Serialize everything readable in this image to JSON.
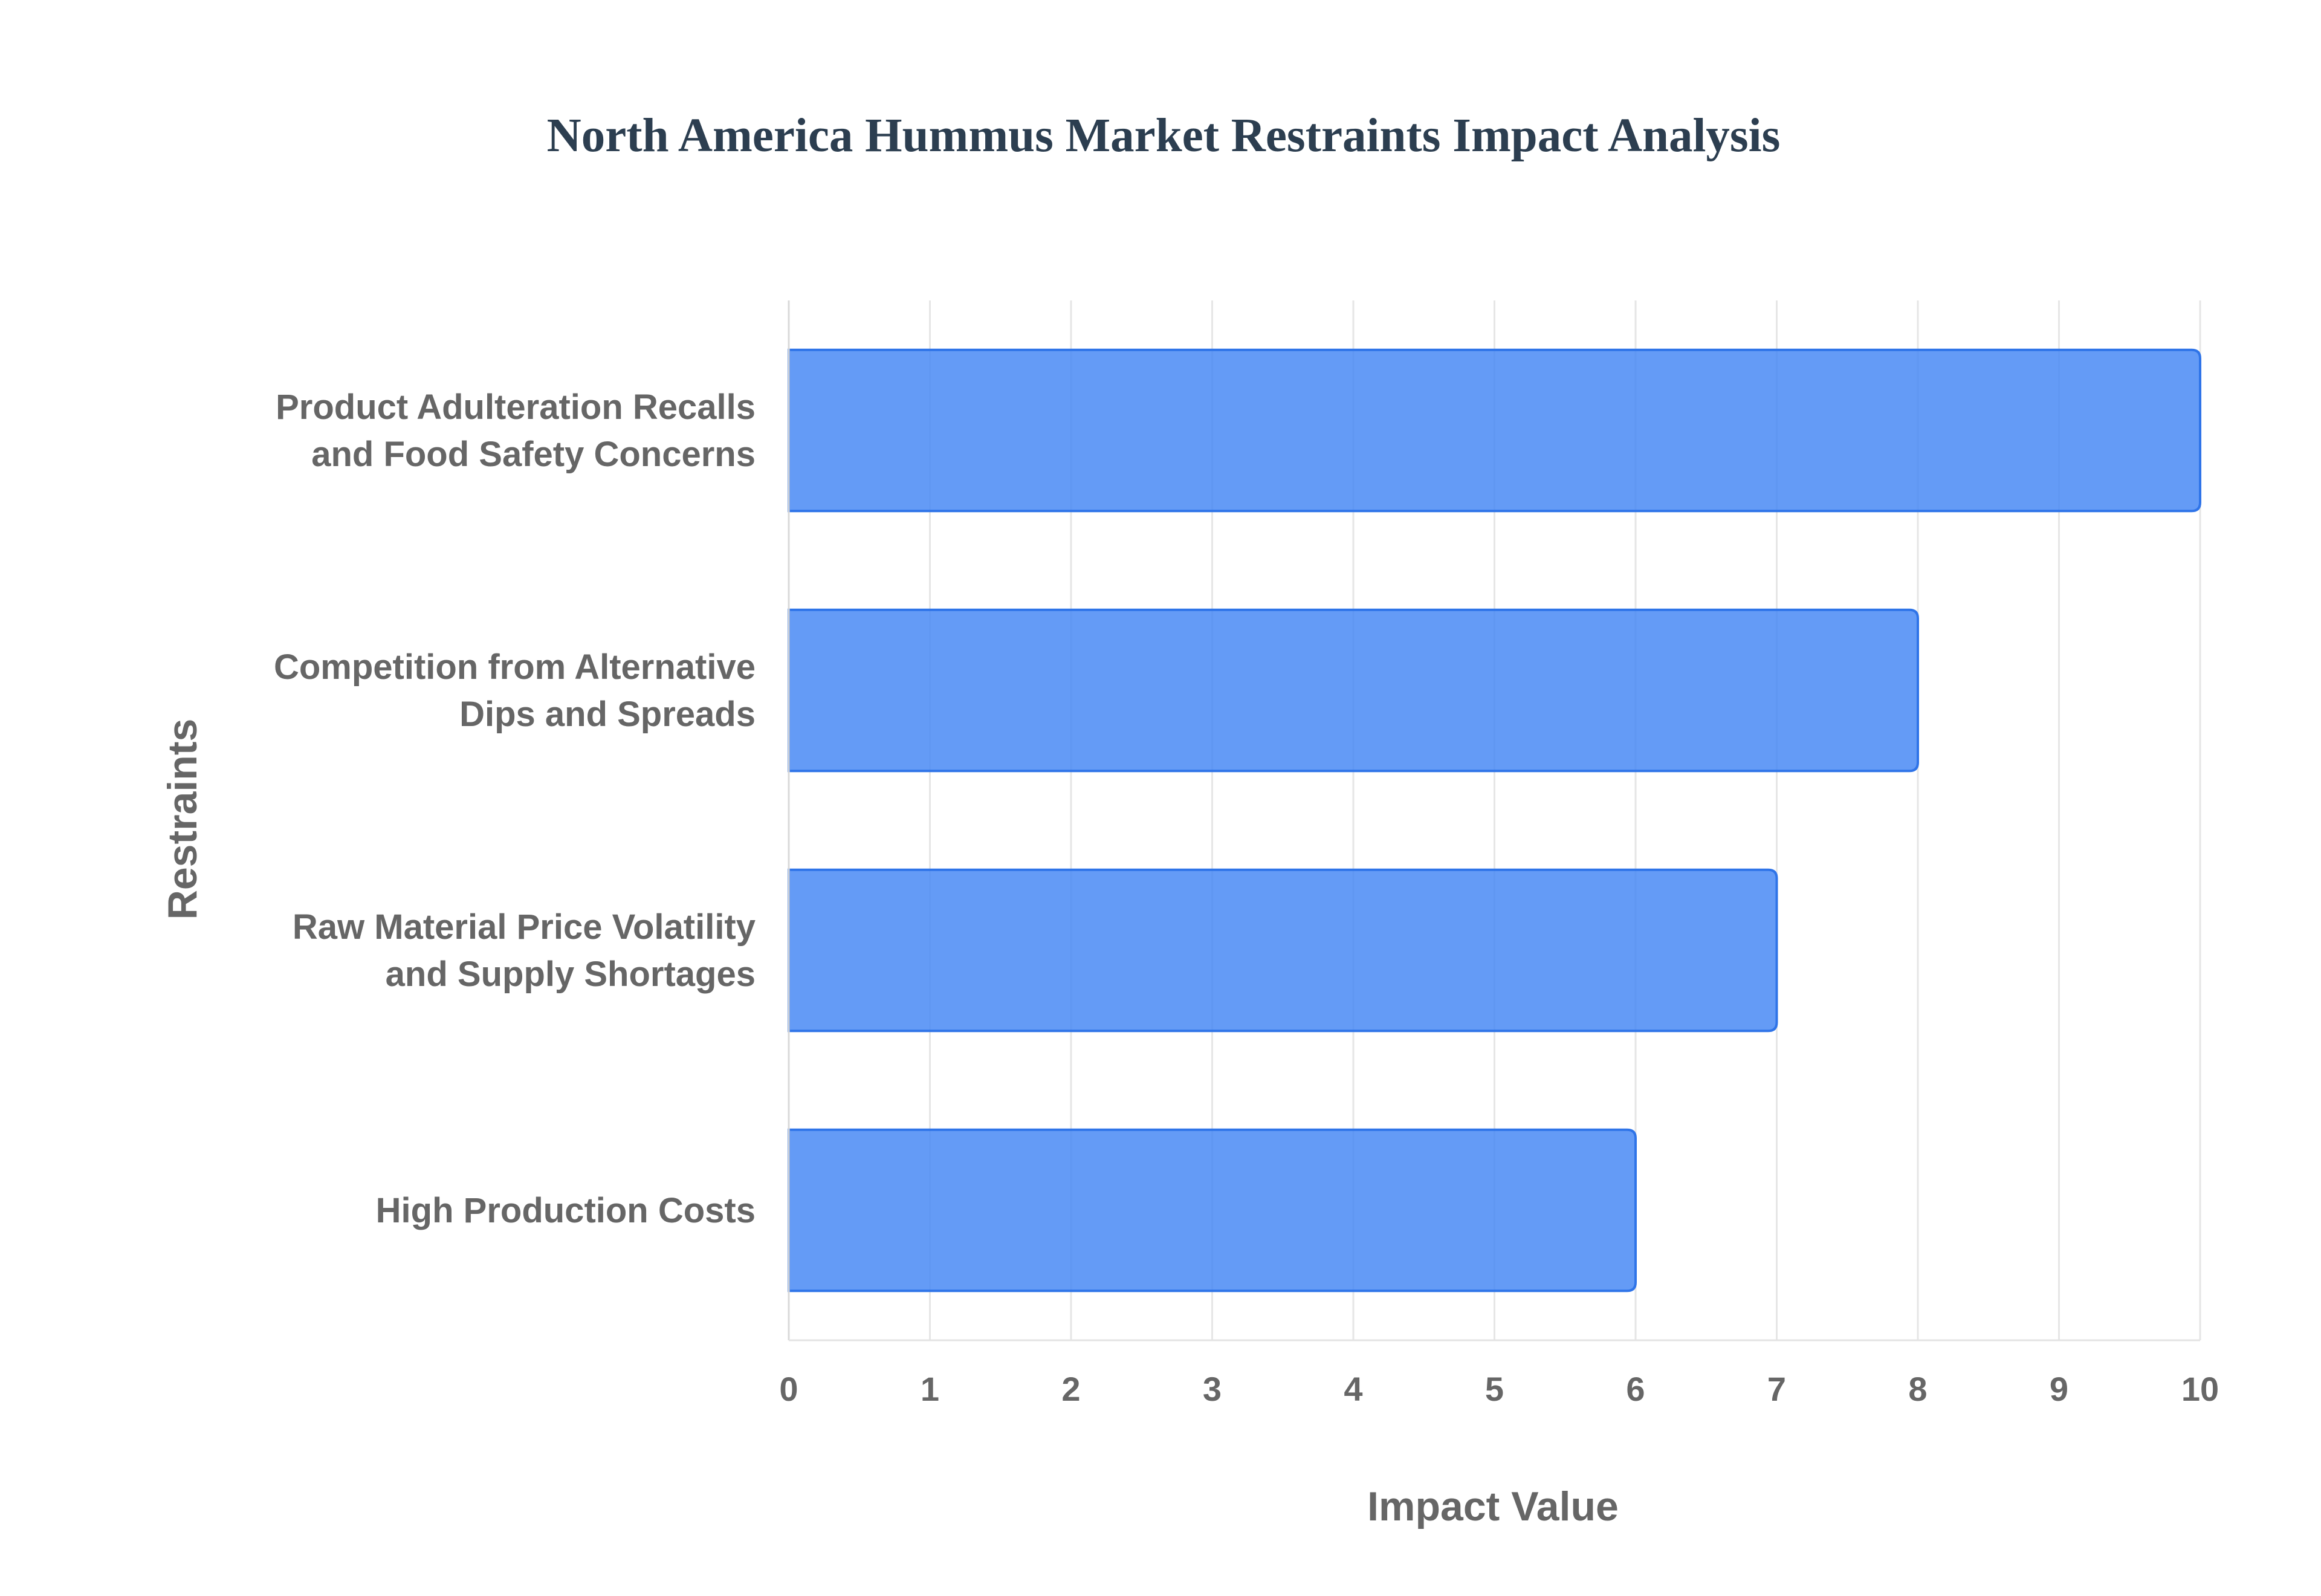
{
  "chart_data": {
    "type": "bar",
    "orientation": "horizontal",
    "title": "North America Hummus Market Restraints Impact Analysis",
    "xlabel": "Impact Value",
    "ylabel": "Restraints",
    "categories": [
      [
        "Product Adulteration Recalls",
        "and Food Safety Concerns"
      ],
      [
        "Competition from Alternative",
        "Dips and Spreads"
      ],
      [
        "Raw Material Price Volatility",
        "and Supply Shortages"
      ],
      [
        "High Production Costs"
      ]
    ],
    "values": [
      10,
      8,
      7,
      6
    ],
    "xlim": [
      0,
      10
    ],
    "xticks": [
      "0",
      "1",
      "2",
      "3",
      "4",
      "5",
      "6",
      "7",
      "8",
      "9",
      "10"
    ],
    "grid": true,
    "legend": "none",
    "colors": {
      "bar_fill": "#4285f4",
      "bar_stroke": "#2f74e8",
      "grid": "#e6e6e6",
      "title": "#2c3e50",
      "text": "#666666"
    }
  }
}
